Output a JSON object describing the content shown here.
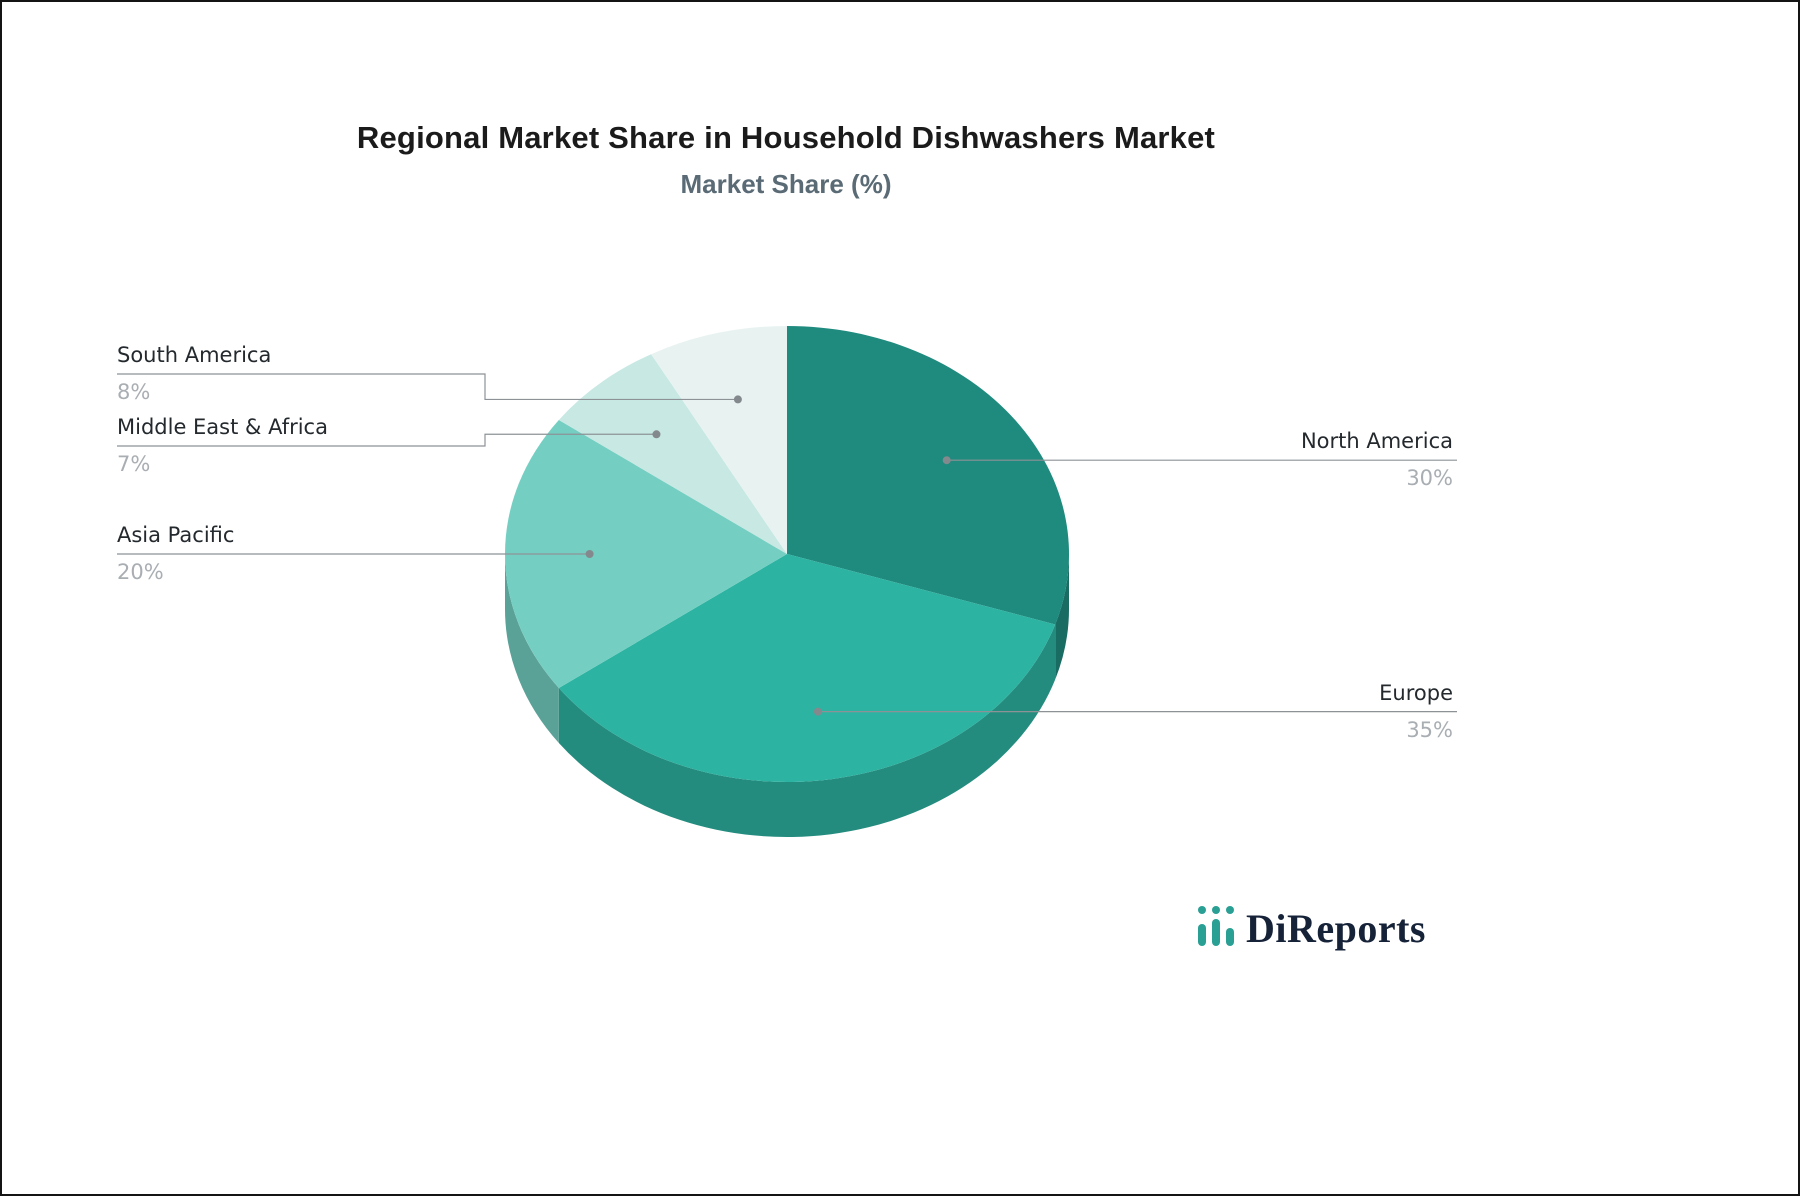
{
  "chart_data": {
    "type": "pie",
    "title": "Regional Market Share in Household Dishwashers Market",
    "subtitle": "Market Share (%)",
    "unit": "%",
    "direction": "clockwise",
    "start_angle_deg": 0,
    "depth_effect": "3d",
    "legend_position": "none",
    "slices": [
      {
        "label": "North America",
        "value": 30,
        "value_label": "30%",
        "color": "#1f8a7e"
      },
      {
        "label": "Europe",
        "value": 35,
        "value_label": "35%",
        "color": "#2db3a2"
      },
      {
        "label": "Asia Pacific",
        "value": 20,
        "value_label": "20%",
        "color": "#74cfc2"
      },
      {
        "label": "Middle East & Africa",
        "value": 7,
        "value_label": "7%",
        "color": "#c7e8e3"
      },
      {
        "label": "South America",
        "value": 8,
        "value_label": "8%",
        "color": "#e8f3f1"
      }
    ],
    "leader_line_color": "#8d9296",
    "leader_dot_color": "#84898d"
  },
  "branding": {
    "logo_text": "DiReports",
    "logo_icon": "bar-chart-icon",
    "logo_text_color": "#152238",
    "logo_icon_color": "#2aa095"
  }
}
